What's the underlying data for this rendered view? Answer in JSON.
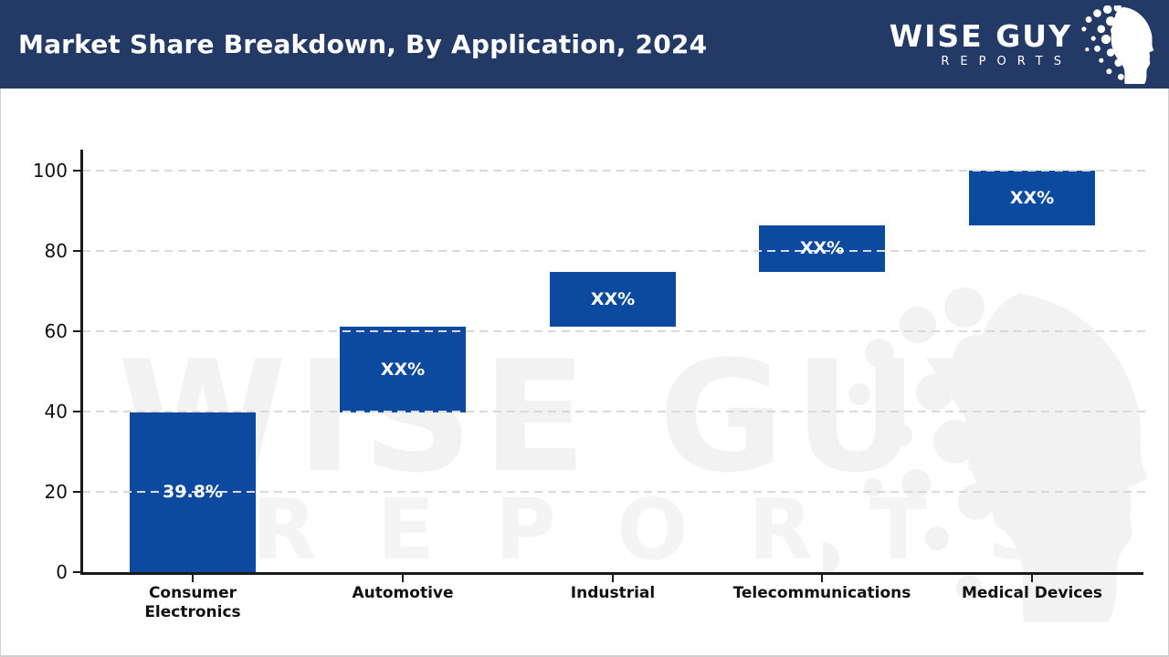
{
  "header": {
    "title": "Market Share Breakdown, By Application, 2024",
    "logo": {
      "line1": "WISE GUY",
      "line2": "REPORTS"
    }
  },
  "watermark": {
    "line1": "WISE GUY",
    "line2": "REPORTS"
  },
  "chart_data": {
    "type": "bar",
    "subtype": "waterfall",
    "title": "Market Share Breakdown, By Application, 2024",
    "categories": [
      "Consumer Electronics",
      "Automotive",
      "Industrial",
      "Telecommunications",
      "Medical Devices"
    ],
    "tick_labels": [
      "Consumer\nElectronics",
      "Automotive",
      "Industrial",
      "Telecommunications",
      "Medical Devices"
    ],
    "segments": [
      {
        "category": "Consumer Electronics",
        "start": 0,
        "end": 39.8,
        "label": "39.8%"
      },
      {
        "category": "Automotive",
        "start": 39.8,
        "end": 61.1,
        "label": "XX%"
      },
      {
        "category": "Industrial",
        "start": 61.1,
        "end": 74.8,
        "label": "XX%"
      },
      {
        "category": "Telecommunications",
        "start": 74.8,
        "end": 86.4,
        "label": "XX%"
      },
      {
        "category": "Medical Devices",
        "start": 86.4,
        "end": 100,
        "label": "XX%"
      }
    ],
    "ylim": [
      0,
      100
    ],
    "yticks": [
      0,
      20,
      40,
      60,
      80,
      100
    ],
    "xlabel": "",
    "ylabel": "",
    "grid": "horizontal dashed",
    "legend": "none",
    "bar_color": "#0b4a9e",
    "bar_label_color": "#ffffff",
    "header_color": "#233a66",
    "gridline_color": "#d9d9d9"
  }
}
